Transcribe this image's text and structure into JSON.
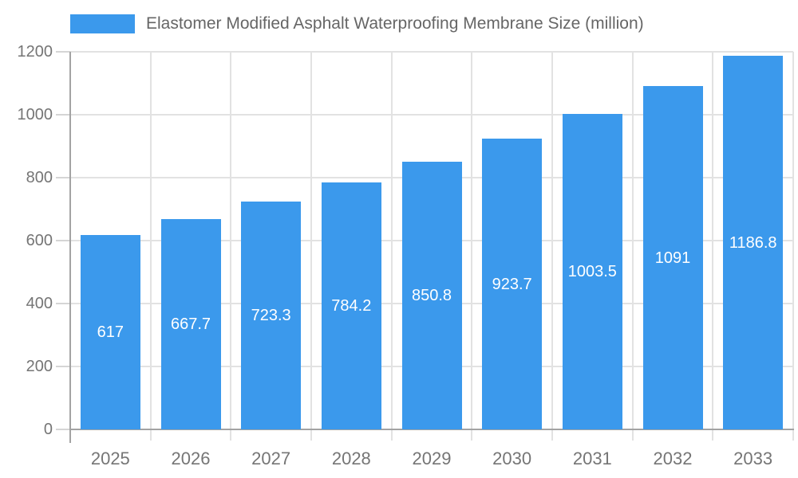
{
  "colors": {
    "bar": "#3B99EC",
    "grid": "#E2E2E2",
    "axis": "#A3A3A3",
    "tick": "#D5D5D5",
    "tick_label": "#757575",
    "legend_text": "#666666",
    "value_label": "#FFFFFF",
    "background": "#FFFFFF"
  },
  "chart_data": {
    "type": "bar",
    "title": "",
    "legend": "Elastomer Modified Asphalt Waterproofing Membrane Size (million)",
    "legend_position": "top-left",
    "categories": [
      "2025",
      "2026",
      "2027",
      "2028",
      "2029",
      "2030",
      "2031",
      "2032",
      "2033"
    ],
    "series": [
      {
        "name": "Elastomer Modified Asphalt Waterproofing Membrane Size (million)",
        "values": [
          617,
          667.7,
          723.3,
          784.2,
          850.8,
          923.7,
          1003.5,
          1091,
          1186.8
        ]
      }
    ],
    "xlabel": "",
    "ylabel": "",
    "ylim": [
      0,
      1200
    ],
    "yticks": [
      0,
      200,
      400,
      600,
      800,
      1000,
      1200
    ],
    "grid": true,
    "value_labels": "inside-center"
  }
}
